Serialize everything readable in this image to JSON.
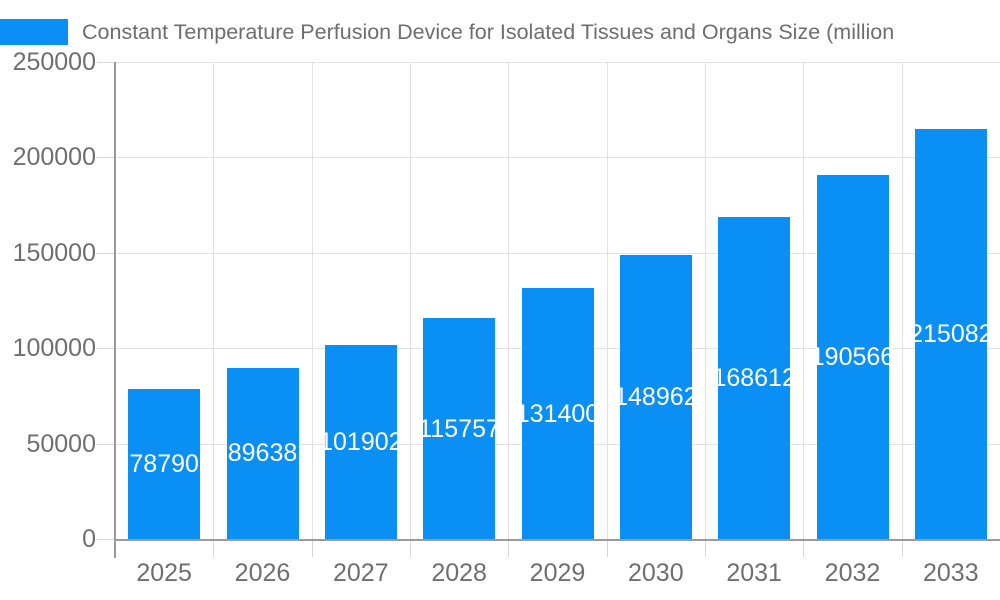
{
  "legend": {
    "series_label": "Constant Temperature Perfusion Device for Isolated Tissues and Organs Size (million",
    "position": "top-left"
  },
  "chart_data": {
    "type": "bar",
    "title": "Constant Temperature Perfusion Device for Isolated Tissues and Organs Size (million",
    "categories": [
      "2025",
      "2026",
      "2027",
      "2028",
      "2029",
      "2030",
      "2031",
      "2032",
      "2033"
    ],
    "values": [
      78790,
      89638,
      101902,
      115757,
      131400,
      148962,
      168612,
      190566,
      215082
    ],
    "xlabel": "",
    "ylabel": "",
    "ylim": [
      0,
      250000
    ],
    "yticks": [
      0,
      50000,
      100000,
      150000,
      200000,
      250000
    ],
    "grid": true,
    "legend_position": "top-left",
    "value_label_position": "inside-center"
  },
  "colors": {
    "bar": "#0a8ff5",
    "grid_line": "#e2e2e2",
    "tick_line": "#d6d6d6",
    "axis_line": "#9a9a9a",
    "axis_text": "#6f6f6f",
    "title_text": "#6e6e6e",
    "value_label_text": "#ffffff",
    "background": "#ffffff"
  }
}
